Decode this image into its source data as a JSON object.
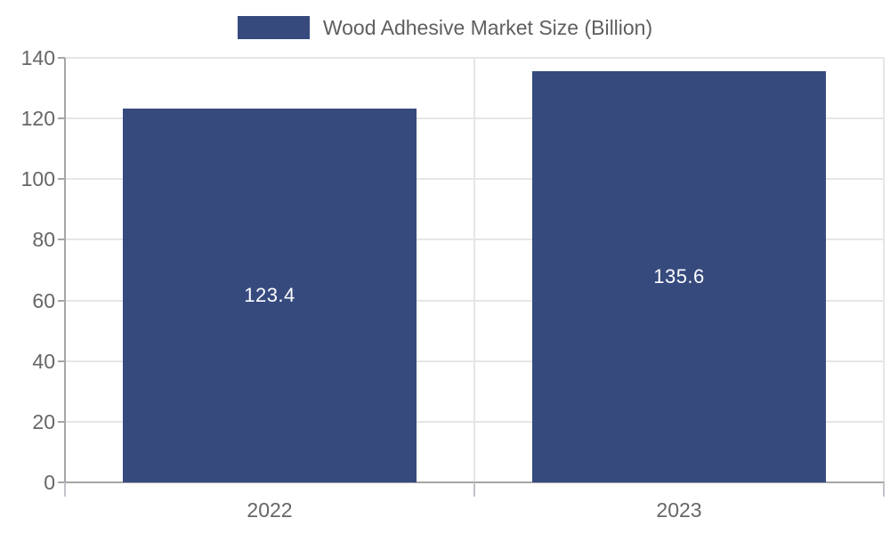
{
  "chart_data": {
    "type": "bar",
    "title": "",
    "series_name": "Wood Adhesive Market Size (Billion)",
    "legend": {
      "position": "top-center",
      "entries": [
        "Wood Adhesive Market Size (Billion)"
      ]
    },
    "categories": [
      "2022",
      "2023"
    ],
    "values": [
      123.4,
      135.6
    ],
    "data_labels": [
      "123.4",
      "135.6"
    ],
    "xlabel": "",
    "ylabel": "",
    "ylim": [
      0,
      140
    ],
    "yticks": [
      0,
      20,
      40,
      60,
      80,
      100,
      120,
      140
    ],
    "grid": true,
    "colors": {
      "bar": "#364a7e",
      "bar_value_label": "#ffffff",
      "grid": "#e6e6e6",
      "axis": "#a6a6a6",
      "tick_mark": "#c2c2ca",
      "tick_label": "#666666",
      "legend_text": "#5f5f5f",
      "background": "#ffffff"
    }
  }
}
